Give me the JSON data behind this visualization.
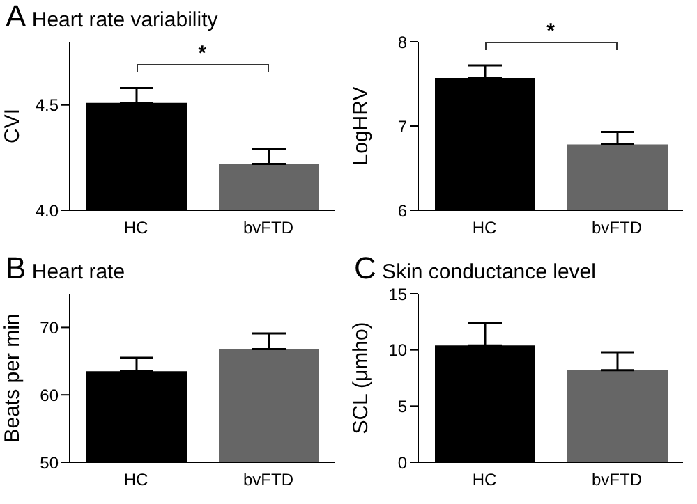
{
  "chart_data": [
    {
      "type": "bar",
      "title": "A Heart rate variability",
      "ylabel": "CVI",
      "categories": [
        "HC",
        "bvFTD"
      ],
      "values": [
        4.51,
        4.22
      ],
      "errors": [
        0.07,
        0.07
      ],
      "colors": [
        "#000000",
        "#666666"
      ],
      "ylim": [
        4.0,
        4.8
      ],
      "yticks": [
        {
          "value": 4,
          "label": "4.0"
        },
        4.5
      ],
      "annotations": [
        "*"
      ],
      "grid": false,
      "legend": false
    },
    {
      "type": "bar",
      "ylabel": "LogHRV",
      "categories": [
        "HC",
        "bvFTD"
      ],
      "values": [
        7.57,
        6.78
      ],
      "errors": [
        0.15,
        0.15
      ],
      "colors": [
        "#000000",
        "#666666"
      ],
      "ylim": [
        6,
        8
      ],
      "yticks": [
        6,
        7,
        8
      ],
      "annotations": [
        "*"
      ],
      "grid": false,
      "legend": false
    },
    {
      "type": "bar",
      "title": "B Heart rate",
      "ylabel": "Beats per min",
      "categories": [
        "HC",
        "bvFTD"
      ],
      "values": [
        63.5,
        66.8
      ],
      "errors": [
        2.0,
        2.3
      ],
      "colors": [
        "#000000",
        "#666666"
      ],
      "ylim": [
        50,
        75
      ],
      "yticks": [
        50,
        60,
        70
      ],
      "grid": false,
      "legend": false
    },
    {
      "type": "bar",
      "title": "C Skin conductance level",
      "ylabel": "SCL (μmho)",
      "categories": [
        "HC",
        "bvFTD"
      ],
      "values": [
        10.4,
        8.2
      ],
      "errors": [
        2.0,
        1.6
      ],
      "colors": [
        "#000000",
        "#666666"
      ],
      "ylim": [
        0,
        15
      ],
      "yticks": [
        0,
        5,
        10,
        15
      ],
      "grid": false,
      "legend": false
    }
  ]
}
